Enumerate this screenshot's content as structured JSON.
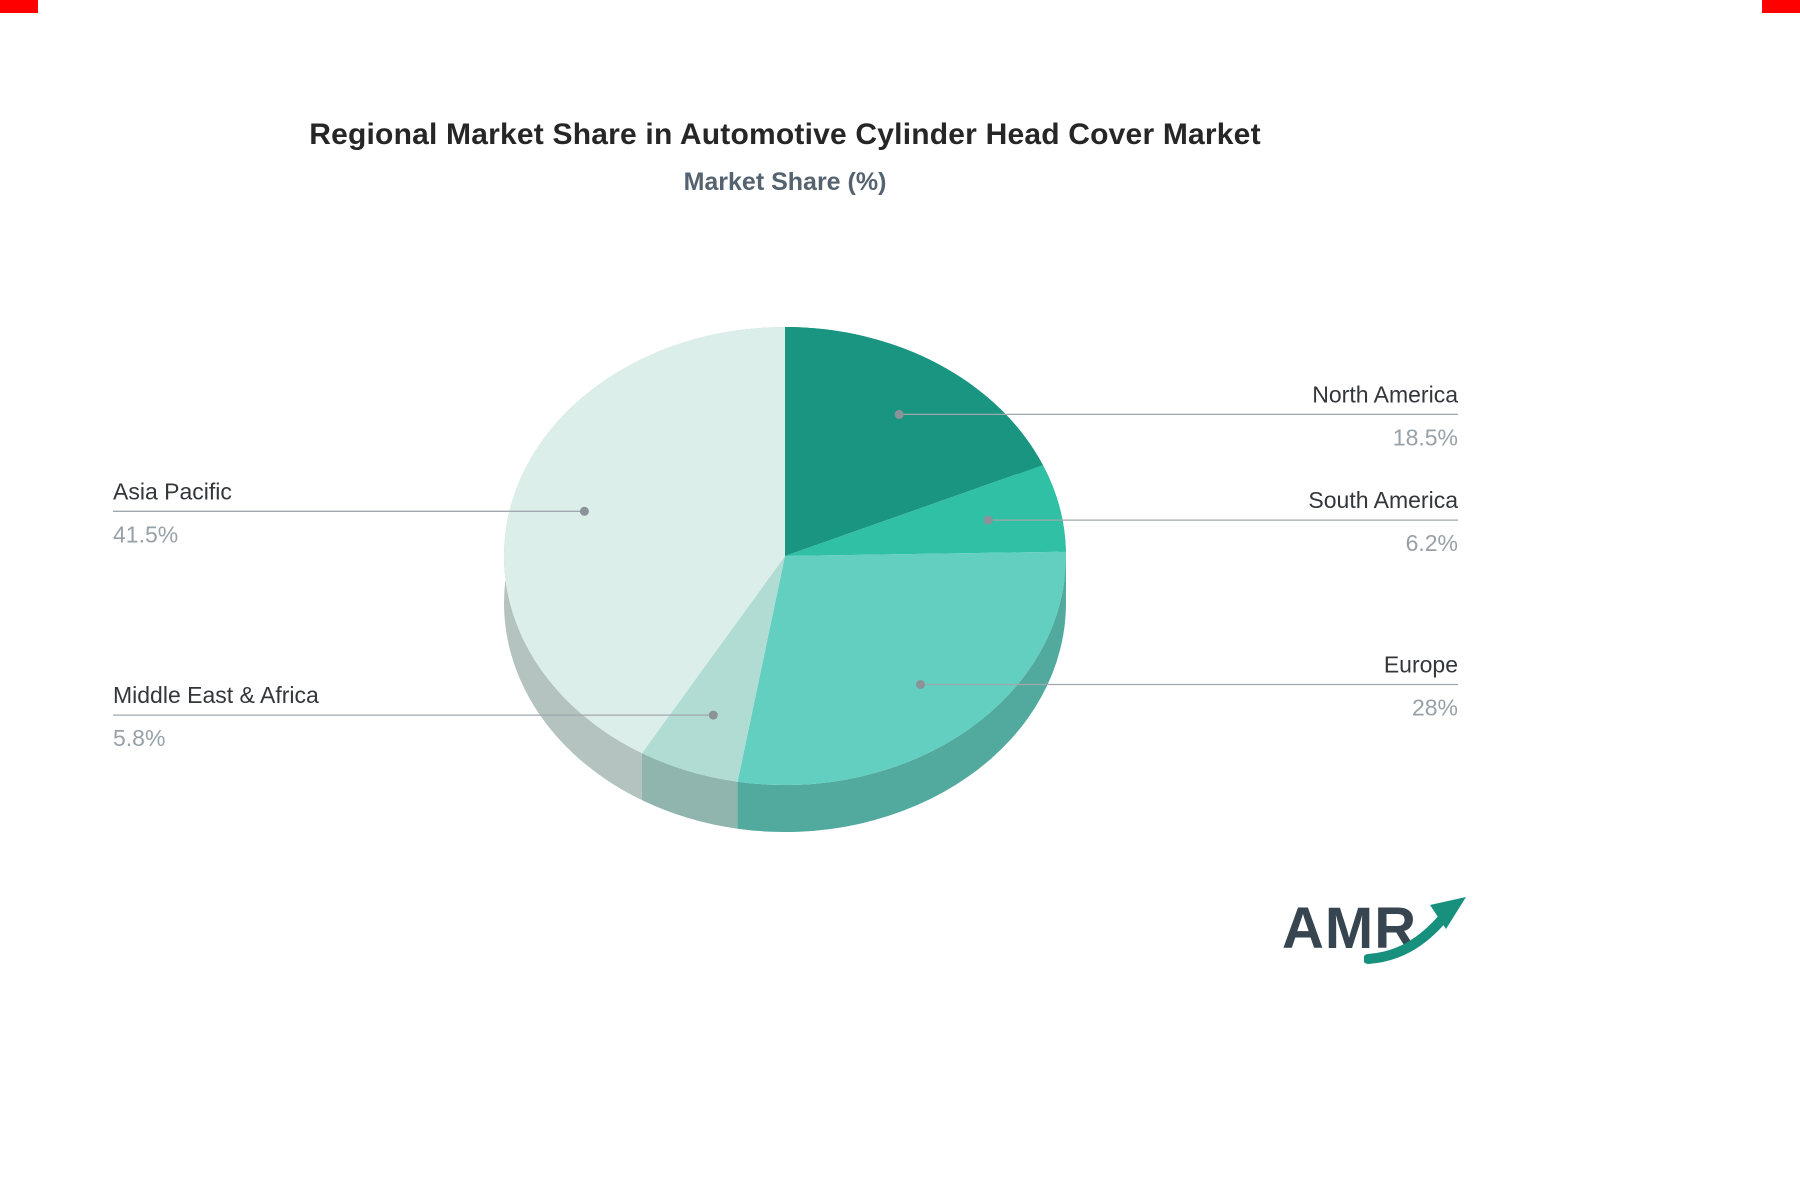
{
  "page": {
    "background": "#ffffff"
  },
  "corner_marks": {
    "color": "#fe0000"
  },
  "header": {
    "title": "Regional Market Share in Automotive Cylinder Head Cover Market",
    "subtitle": "Market Share (%)"
  },
  "chart_data": {
    "type": "pie",
    "title": "Regional Market Share in Automotive Cylinder Head Cover Market",
    "subtitle": "Market Share (%)",
    "unit": "%",
    "order": "clockwise-from-top",
    "effect": "3d-depth",
    "slices": [
      {
        "label": "North America",
        "value": 18.5,
        "display": "18.5%",
        "color": "#1a9581",
        "side": "right"
      },
      {
        "label": "South America",
        "value": 6.2,
        "display": "6.2%",
        "color": "#2fc0a5",
        "side": "right"
      },
      {
        "label": "Europe",
        "value": 28,
        "display": "28%",
        "color": "#63cfc0",
        "side": "right"
      },
      {
        "label": "Middle East & Africa",
        "value": 5.8,
        "display": "5.8%",
        "color": "#b0dcd4",
        "side": "left"
      },
      {
        "label": "Asia Pacific",
        "value": 41.5,
        "display": "41.5%",
        "color": "#dceeea",
        "side": "left"
      }
    ],
    "label_color": "#33363a",
    "value_color": "#97a1a7",
    "leader_line_color": "#a0a7ad",
    "legend": "none",
    "grid": "off"
  },
  "logo": {
    "text": "AMR",
    "color": "#36454f",
    "arrow_color": "#17907e"
  }
}
